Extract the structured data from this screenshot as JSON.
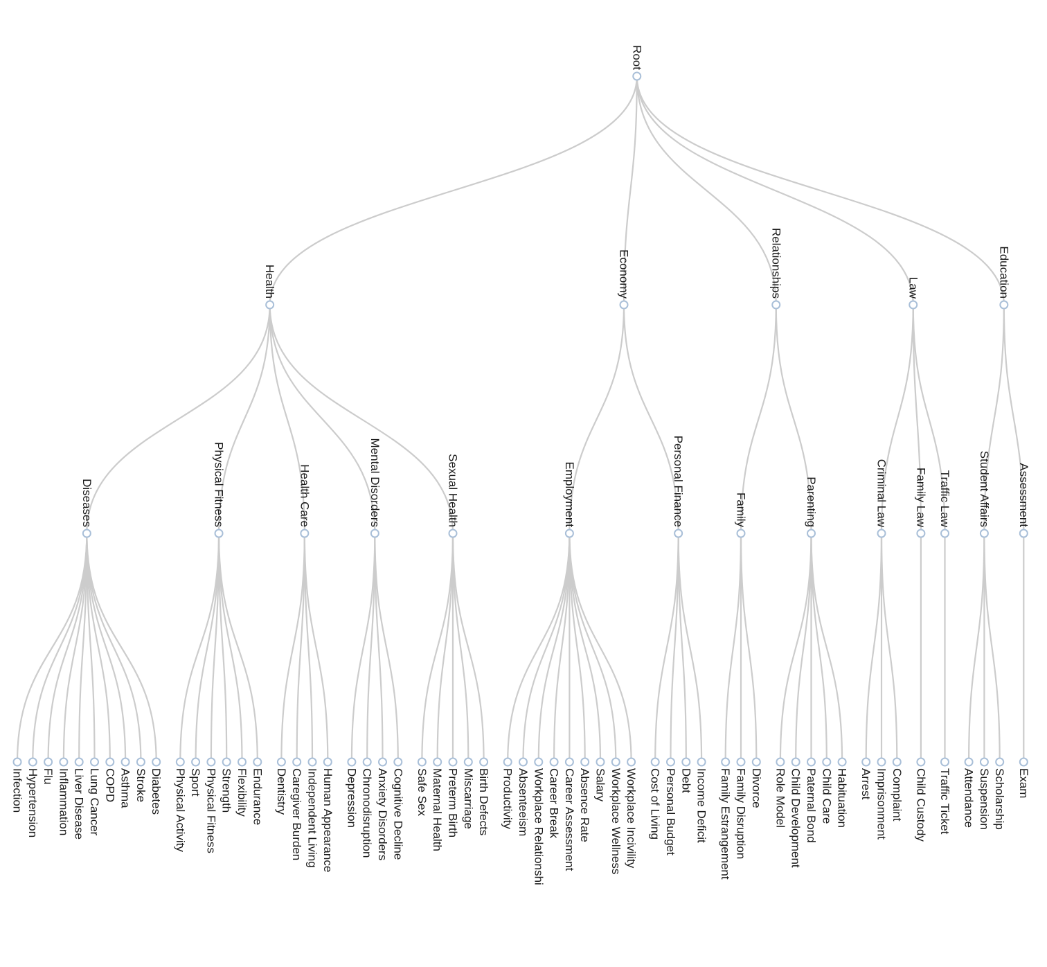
{
  "diagram": {
    "type": "tree",
    "colors": {
      "link": "#cccccc",
      "node_fill": "#ffffff",
      "node_stroke": "#a9bfd8",
      "text": "#1a1a1a"
    },
    "tree": {
      "name": "Root",
      "children": [
        {
          "name": "Health",
          "children": [
            {
              "name": "Diseases",
              "children": [
                {
                  "name": "Infection"
                },
                {
                  "name": "Hypertension"
                },
                {
                  "name": "Flu"
                },
                {
                  "name": "Inflammation"
                },
                {
                  "name": "Liver Disease"
                },
                {
                  "name": "Lung Cancer"
                },
                {
                  "name": "COPD"
                },
                {
                  "name": "Asthma"
                },
                {
                  "name": "Stroke"
                },
                {
                  "name": "Diabetes"
                }
              ]
            },
            {
              "name": "Physical Fitness",
              "children": [
                {
                  "name": "Physical Activity"
                },
                {
                  "name": "Sport"
                },
                {
                  "name": "Physical Fitness"
                },
                {
                  "name": "Strength"
                },
                {
                  "name": "Flexibility"
                },
                {
                  "name": "Endurance"
                }
              ]
            },
            {
              "name": "Health Care",
              "children": [
                {
                  "name": "Dentistry"
                },
                {
                  "name": "Caregiver Burden"
                },
                {
                  "name": "Independent Living"
                },
                {
                  "name": "Human Appearance"
                }
              ]
            },
            {
              "name": "Mental Disorders",
              "children": [
                {
                  "name": "Depression"
                },
                {
                  "name": "Chronodisruption"
                },
                {
                  "name": "Anxiety Disorders"
                },
                {
                  "name": "Cognitive Decline"
                }
              ]
            },
            {
              "name": "Sexual Health",
              "children": [
                {
                  "name": "Safe Sex"
                },
                {
                  "name": "Maternal Health"
                },
                {
                  "name": "Preterm Birth"
                },
                {
                  "name": "Miscarriage"
                },
                {
                  "name": "Birth Defects"
                }
              ]
            }
          ]
        },
        {
          "name": "Economy",
          "children": [
            {
              "name": "Employment",
              "children": [
                {
                  "name": "Productivity"
                },
                {
                  "name": "Absenteeism"
                },
                {
                  "name": "Workplace Relationshi"
                },
                {
                  "name": "Career Break"
                },
                {
                  "name": "Career Assessment"
                },
                {
                  "name": "Absence Rate"
                },
                {
                  "name": "Salary"
                },
                {
                  "name": "Workplace Wellness"
                },
                {
                  "name": "Workplace Incivility"
                }
              ]
            },
            {
              "name": "Personal Finance",
              "children": [
                {
                  "name": "Cost of Living"
                },
                {
                  "name": "Personal Budget"
                },
                {
                  "name": "Debt"
                },
                {
                  "name": "Income Deficit"
                }
              ]
            }
          ]
        },
        {
          "name": "Relationships",
          "children": [
            {
              "name": "Family",
              "children": [
                {
                  "name": "Family Estrangement"
                },
                {
                  "name": "Family Disruption"
                },
                {
                  "name": "Divorce"
                }
              ]
            },
            {
              "name": "Parenting",
              "children": [
                {
                  "name": "Role Model"
                },
                {
                  "name": "Child Development"
                },
                {
                  "name": "Paternal Bond"
                },
                {
                  "name": "Child Care"
                },
                {
                  "name": "Habituation"
                }
              ]
            }
          ]
        },
        {
          "name": "Law",
          "children": [
            {
              "name": "Criminal Law",
              "children": [
                {
                  "name": "Arrest"
                },
                {
                  "name": "Imprisonment"
                },
                {
                  "name": "Complaint"
                }
              ]
            },
            {
              "name": "Family Law",
              "children": [
                {
                  "name": "Child Custody"
                }
              ]
            },
            {
              "name": "Traffic Law",
              "children": [
                {
                  "name": "Traffic Ticket"
                }
              ]
            }
          ]
        },
        {
          "name": "Education",
          "children": [
            {
              "name": "Student Affairs",
              "children": [
                {
                  "name": "Attendance"
                },
                {
                  "name": "Suspension"
                },
                {
                  "name": "Scholarship"
                }
              ]
            },
            {
              "name": "Assessment",
              "children": [
                {
                  "name": "Exam"
                }
              ]
            }
          ]
        }
      ]
    }
  }
}
